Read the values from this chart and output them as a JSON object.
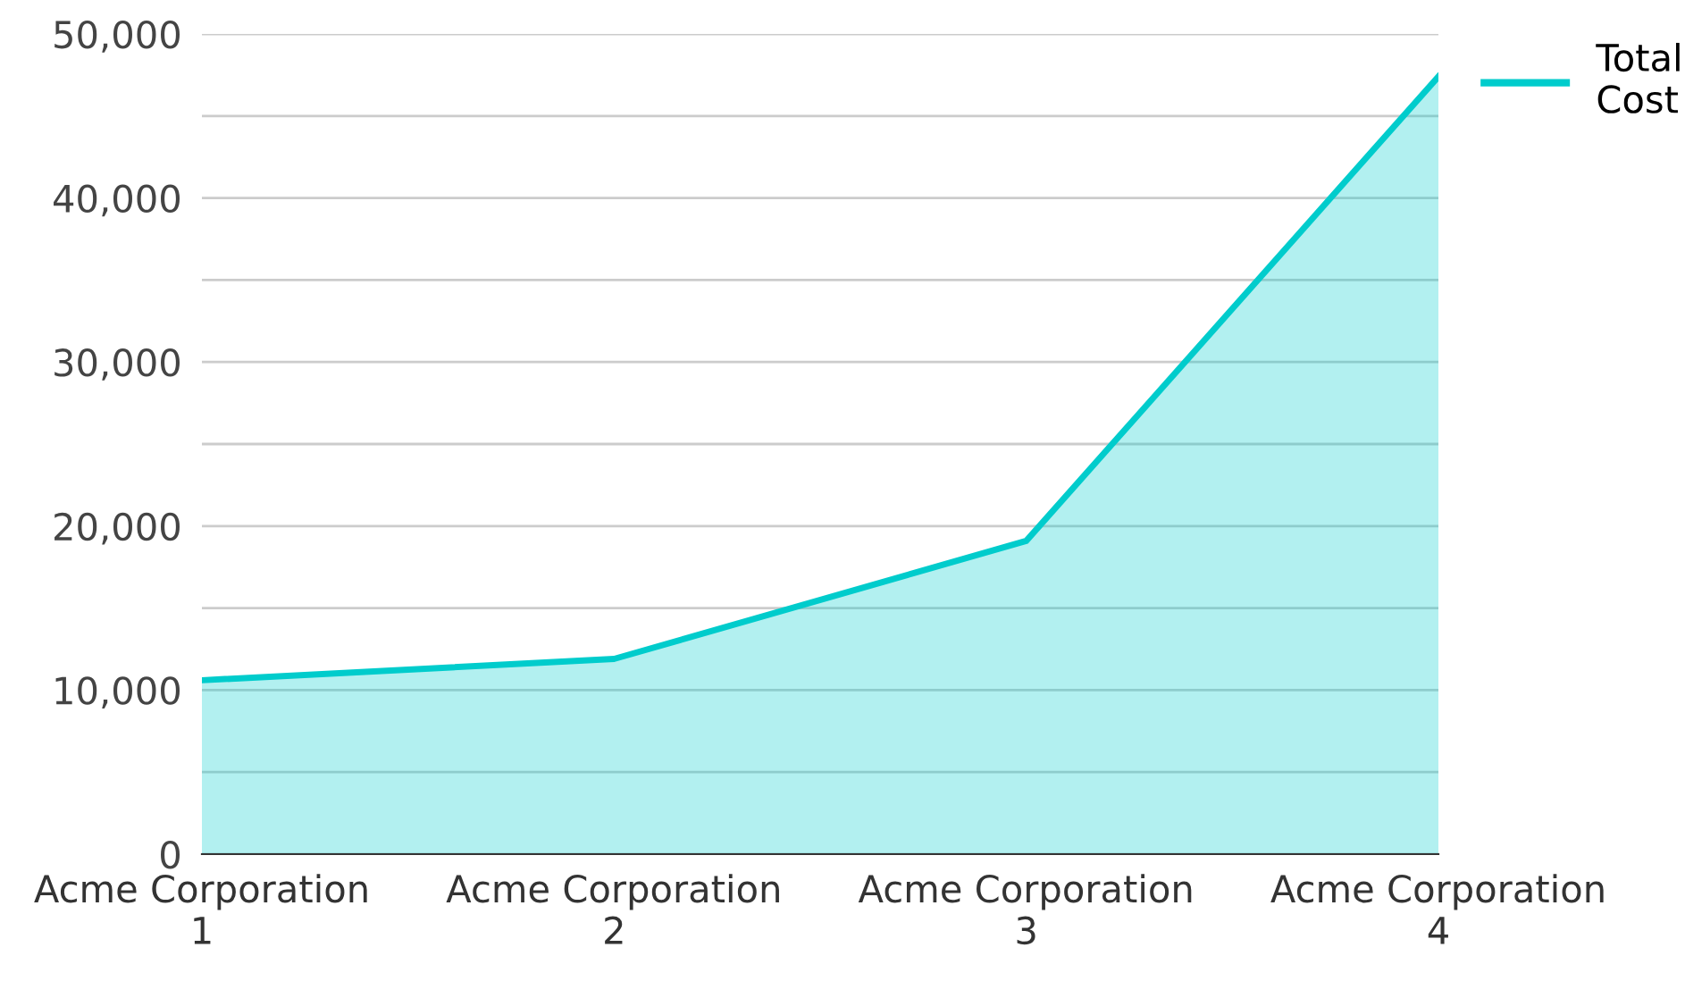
{
  "chart_data": {
    "type": "area",
    "categories": [
      "Acme Corporation 1",
      "Acme Corporation 2",
      "Acme Corporation 3",
      "Acme Corporation 4"
    ],
    "series": [
      {
        "name": "Total Cost",
        "color": "#00cccc",
        "values": [
          10600,
          11900,
          19100,
          47400
        ]
      }
    ],
    "ylim": [
      0,
      50000
    ],
    "yticks": [
      0,
      {
        "value": 5000,
        "label": null
      },
      {
        "value": 10000,
        "label": "10,000"
      },
      {
        "value": 15000,
        "label": null
      },
      {
        "value": 20000,
        "label": "20,000"
      },
      {
        "value": 25000,
        "label": null
      },
      {
        "value": 30000,
        "label": "30,000"
      },
      {
        "value": 35000,
        "label": null
      },
      {
        "value": 40000,
        "label": "40,000"
      },
      {
        "value": 45000,
        "label": null
      },
      {
        "value": 50000,
        "label": "50,000"
      }
    ],
    "grid": "y",
    "legend": "top right"
  }
}
